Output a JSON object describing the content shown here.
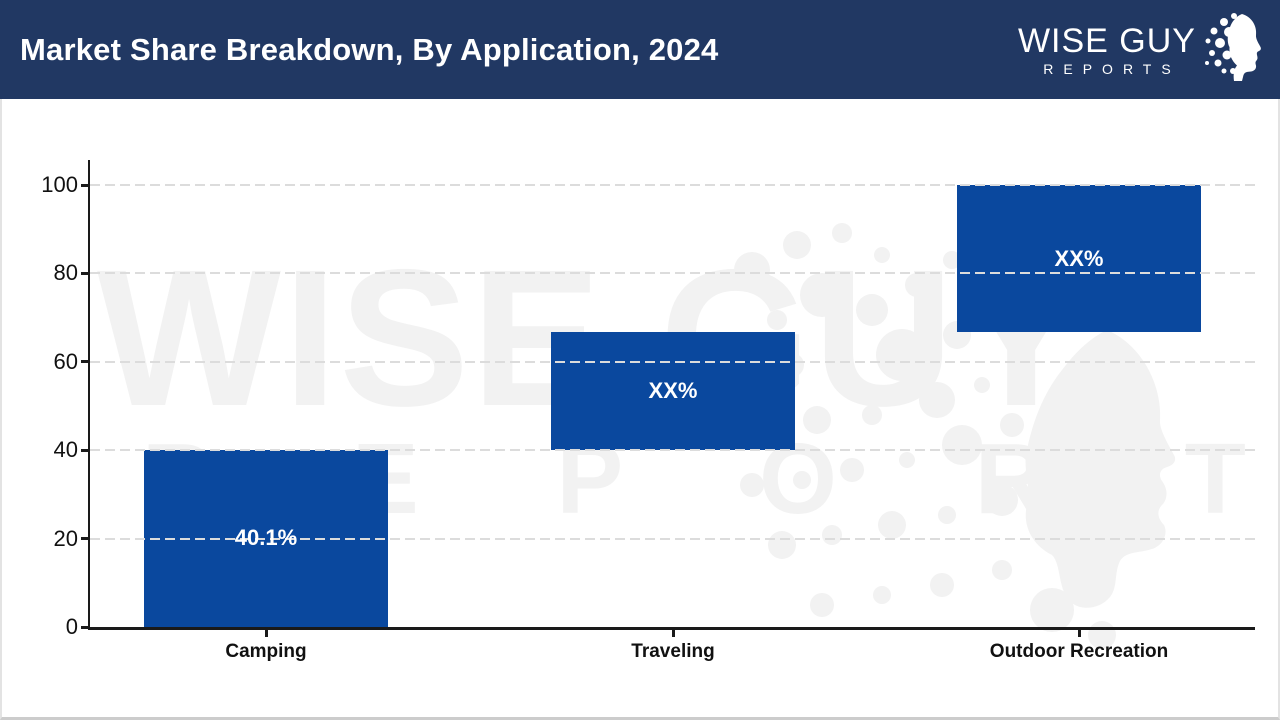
{
  "header": {
    "title": "Market Share Breakdown, By Application, 2024",
    "logo": {
      "line1": "WISE GUY",
      "line2": "REPORTS"
    }
  },
  "watermark": {
    "line1": "WISE GUY",
    "line2": "R E P O R T S"
  },
  "chart_data": {
    "type": "bar",
    "variant": "waterfall-floating-bars",
    "title": "Market Share Breakdown, By Application, 2024",
    "categories": [
      "Camping",
      "Traveling",
      "Outdoor Recreation"
    ],
    "bars": [
      {
        "category": "Camping",
        "start": 0,
        "end": 40.1,
        "label": "40.1%"
      },
      {
        "category": "Traveling",
        "start": 40.1,
        "end": 66.7,
        "label": "XX%"
      },
      {
        "category": "Outdoor Recreation",
        "start": 66.7,
        "end": 100,
        "label": "XX%"
      }
    ],
    "ylim": [
      0,
      105.7
    ],
    "yticks": [
      0,
      20,
      40,
      60,
      80,
      100
    ],
    "yticklabels": [
      "0",
      "20",
      "40",
      "60",
      "80",
      "100"
    ],
    "xlabel": "",
    "ylabel": "",
    "grid": "dashed-horizontal",
    "legend": "none"
  },
  "colors": {
    "header_bg": "#213863",
    "bar": "#0a489e",
    "bar_label": "#ffffff",
    "gridline": "#dcdcdc",
    "axis": "#1a1a1a",
    "watermark": "#f2f2f2"
  }
}
